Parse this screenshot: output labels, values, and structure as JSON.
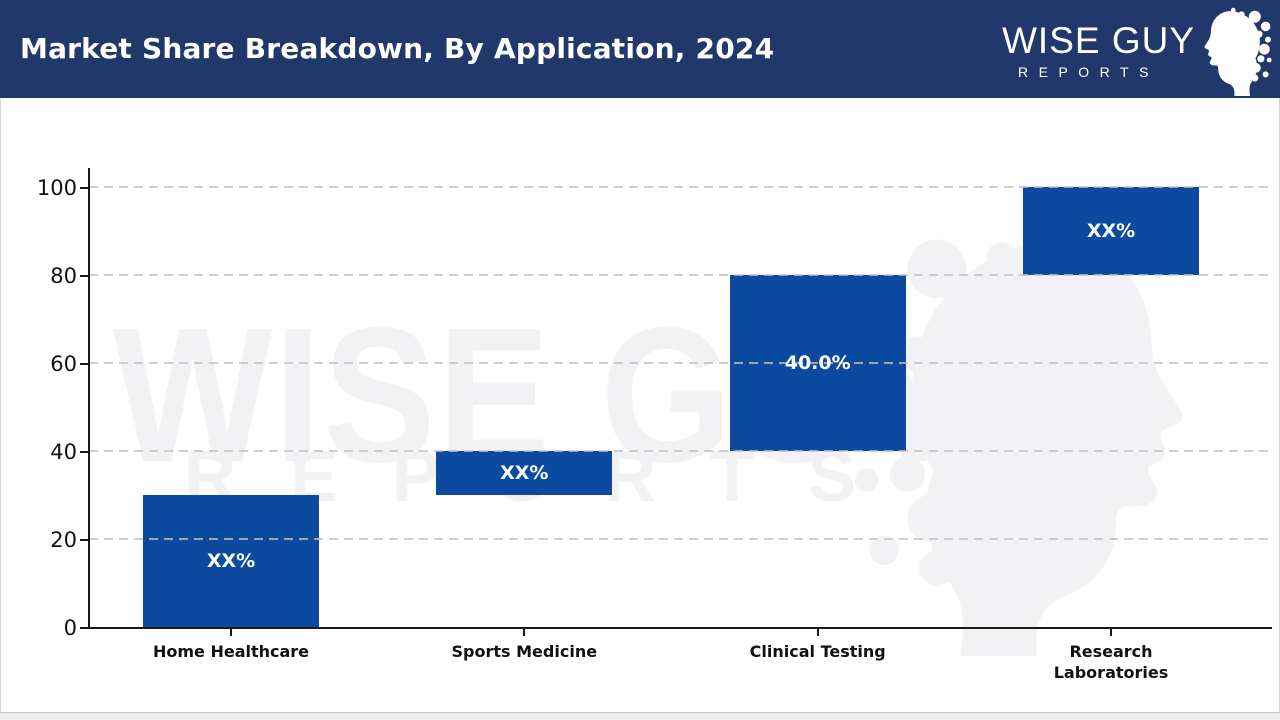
{
  "header": {
    "title": "Market Share Breakdown, By Application, 2024",
    "logo_line1": "WISE GUY",
    "logo_line2": "REPORTS"
  },
  "watermark": {
    "line1": "WISE GUY",
    "line2": "REPORTS"
  },
  "colors": {
    "header_bg": "#21386b",
    "bar": "#0b4a9e",
    "bar_label": "#ffffff",
    "gridline": "#d9d9d9",
    "axis": "#1a1a1a",
    "watermark": "#f2f2f4"
  },
  "chart_data": {
    "type": "bar",
    "subtype": "waterfall",
    "title": "Market Share Breakdown, By Application, 2024",
    "categories": [
      "Home Healthcare",
      "Sports Medicine",
      "Clinical Testing",
      "Research Laboratories"
    ],
    "bars": [
      {
        "category": "Home Healthcare",
        "start": 0,
        "end": 30,
        "label": "XX%"
      },
      {
        "category": "Sports Medicine",
        "start": 30,
        "end": 40,
        "label": "XX%"
      },
      {
        "category": "Clinical Testing",
        "start": 40,
        "end": 80,
        "label": "40.0%"
      },
      {
        "category": "Research Laboratories",
        "start": 80,
        "end": 100,
        "label": "XX%"
      }
    ],
    "yticks": [
      0,
      20,
      40,
      60,
      80,
      100
    ],
    "ylim": [
      0,
      100
    ],
    "xlabel": "",
    "ylabel": "",
    "grid": "horizontal-dashed",
    "legend": "none"
  }
}
